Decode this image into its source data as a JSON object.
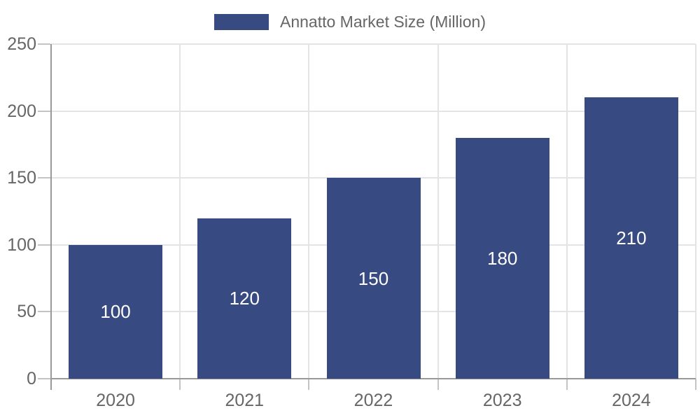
{
  "legend": {
    "label": "Annatto Market Size (Million)"
  },
  "colors": {
    "bar": "#384a82",
    "grid": "#e4e4e4",
    "axis": "#999999",
    "tick": "#c4c4c4",
    "axis_label": "#666666",
    "value_label": "#ffffff",
    "background": "#ffffff"
  },
  "chart_data": {
    "type": "bar",
    "title": "Annatto Market Size (Million)",
    "categories": [
      "2020",
      "2021",
      "2022",
      "2023",
      "2024"
    ],
    "series": [
      {
        "name": "Annatto Market Size (Million)",
        "values": [
          100,
          120,
          150,
          180,
          210
        ]
      }
    ],
    "xlabel": "",
    "ylabel": "",
    "ylim": [
      0,
      250
    ],
    "yticks": [
      0,
      50,
      100,
      150,
      200,
      250
    ],
    "grid": true,
    "legend_position": "top",
    "value_labels": "inside-center"
  }
}
